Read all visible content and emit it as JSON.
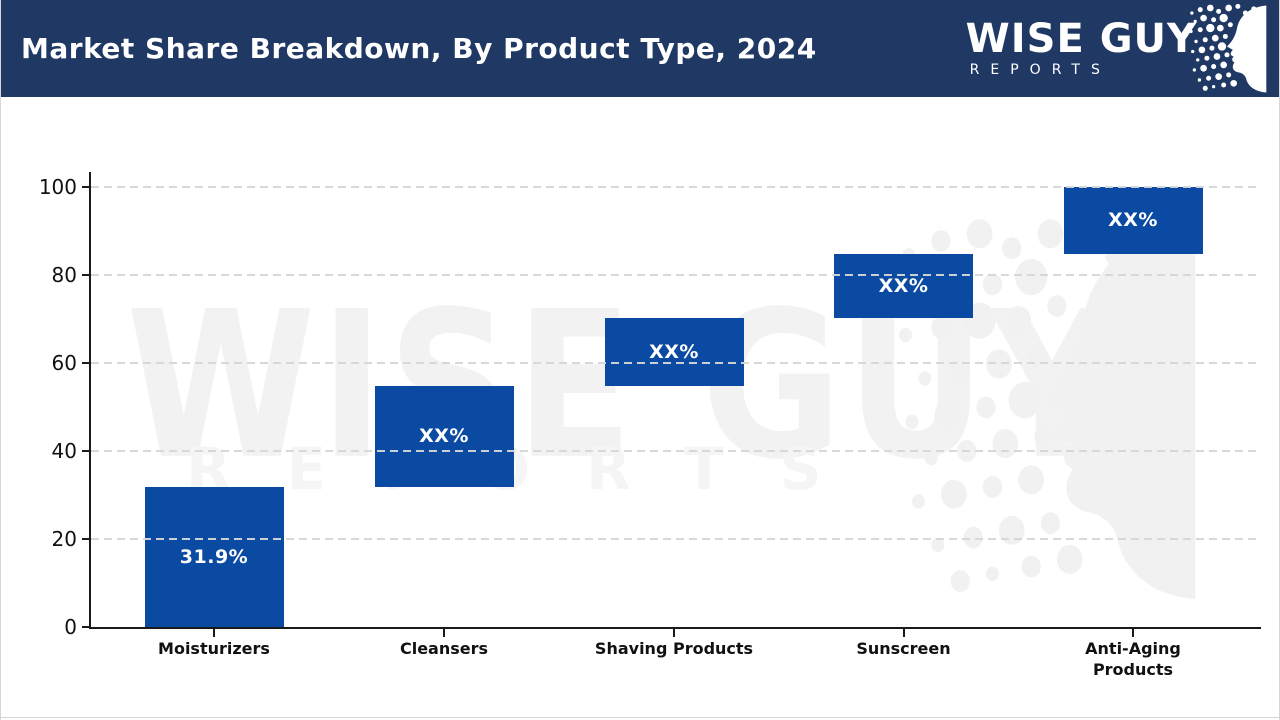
{
  "header": {
    "title": "Market Share Breakdown, By Product Type, 2024",
    "logo": {
      "line1": "WISE GUY",
      "line2": "REPORTS"
    }
  },
  "watermark": {
    "line1": "WISE GUY",
    "line2": "REPORTS"
  },
  "colors": {
    "header_bg": "#1f3864",
    "bar": "#0b4aa2",
    "bar_label": "#ffffff",
    "axis": "#1a1a1a",
    "grid": "#d6d6d6",
    "watermark": "#f1f1f1"
  },
  "chart_data": {
    "type": "bar",
    "variant": "waterfall",
    "title": "Market Share Breakdown, By Product Type, 2024",
    "categories": [
      "Moisturizers",
      "Cleansers",
      "Shaving Products",
      "Sunscreen",
      "Anti-Aging Products"
    ],
    "xtick_labels": [
      "Moisturizers",
      "Cleansers",
      "Shaving Products",
      "Sunscreen",
      "Anti-Aging\nProducts"
    ],
    "segments": [
      {
        "category": "Moisturizers",
        "start": 0,
        "end": 31.9,
        "label": "31.9%"
      },
      {
        "category": "Cleansers",
        "start": 31.9,
        "end": 54.8,
        "label": "XX%"
      },
      {
        "category": "Shaving Products",
        "start": 54.8,
        "end": 70.2,
        "label": "XX%"
      },
      {
        "category": "Sunscreen",
        "start": 70.2,
        "end": 84.8,
        "label": "XX%"
      },
      {
        "category": "Anti-Aging Products",
        "start": 84.8,
        "end": 100,
        "label": "XX%"
      }
    ],
    "yticks": [
      0,
      20,
      40,
      60,
      80,
      100
    ],
    "ylim": [
      0,
      103.4
    ],
    "xlabel": "",
    "ylabel": "",
    "grid": "dashed-horizontal",
    "legend": "none"
  }
}
